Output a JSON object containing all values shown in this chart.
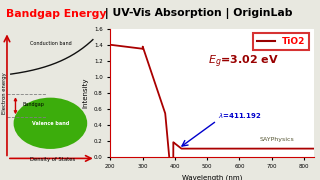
{
  "bg_color": "#e8e8e0",
  "title_red": "Bandgap Energy",
  "title_black": " | UV-Vis Absorption | OriginLab",
  "uv_xlabel": "Density of States",
  "uv_ylabel": "Electron energy",
  "main_xlabel": "Wavelength (nm)",
  "main_ylabel": "Intensity",
  "legend_label": "TiO2",
  "legend_line_color": "#990000",
  "lambda_text": "λ=411.192",
  "lambda_color": "#0000cc",
  "say_physics": "SAYPhysics",
  "xmin": 200,
  "xmax": 830,
  "ymin": 0.0,
  "ymax": 1.6,
  "curve_color": "#aa0000",
  "annotation_color": "#0000cc",
  "valence_band_color": "#33aa00",
  "bandgap_arrow_color": "#cc0000",
  "conduction_curve_color": "#111111",
  "eg_color": "#990000",
  "axis_color": "#cc0000"
}
